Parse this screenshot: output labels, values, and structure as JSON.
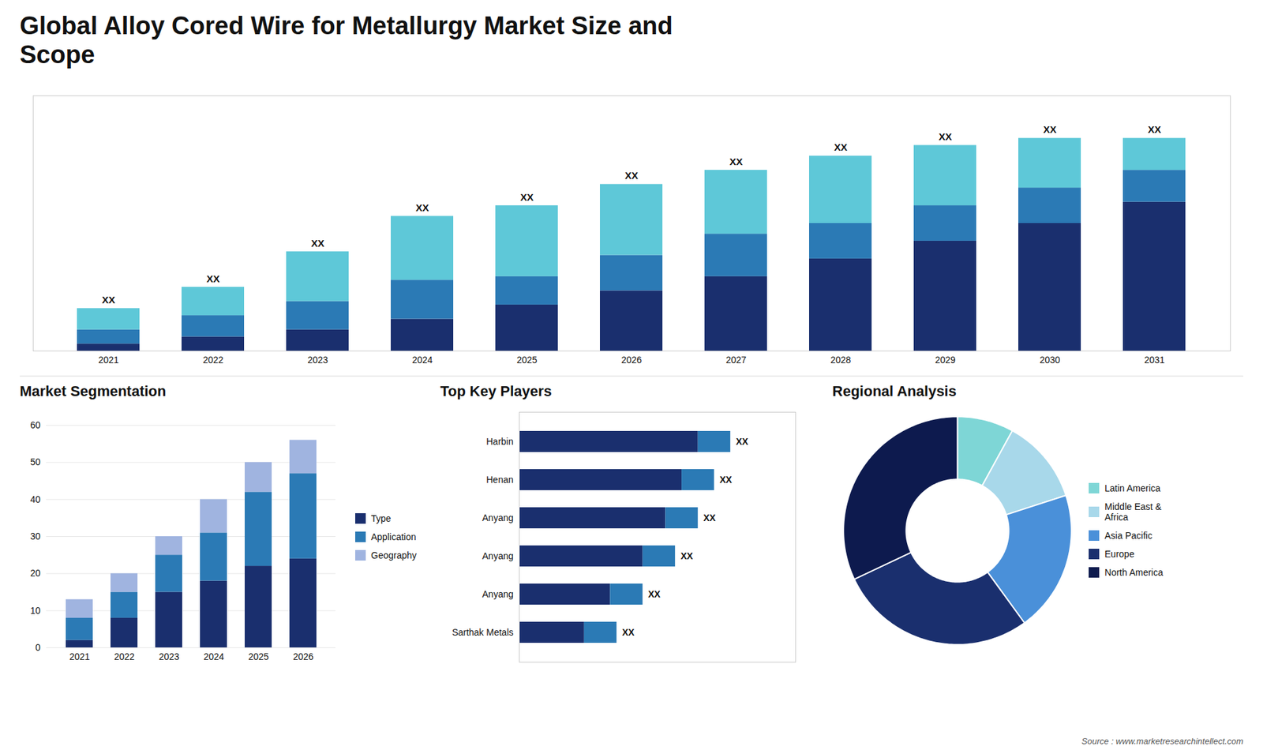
{
  "chart_data": [
    {
      "type": "bar",
      "title": "Global Alloy Cored Wire for Metallurgy Market Size and\nScope",
      "categories": [
        "2021",
        "2022",
        "2023",
        "2024",
        "2025",
        "2026",
        "2027",
        "2028",
        "2029",
        "2030",
        "2031"
      ],
      "stacked": true,
      "series": [
        {
          "color": "#1a2f6e",
          "values": [
            2,
            4,
            6,
            9,
            13,
            17,
            21,
            26,
            31,
            36,
            42
          ]
        },
        {
          "color": "#2b7ab5",
          "values": [
            4,
            6,
            8,
            11,
            8,
            10,
            12,
            10,
            10,
            10,
            9
          ]
        },
        {
          "color": "#5ec8d8",
          "values": [
            6,
            8,
            14,
            18,
            20,
            20,
            18,
            19,
            17,
            14,
            9
          ]
        }
      ],
      "ylim": [
        0,
        72
      ],
      "tick_labels": "x",
      "grid": false,
      "annotations": [
        {
          "category": "2021",
          "text": "XX"
        },
        {
          "category": "2022",
          "text": "XX"
        },
        {
          "category": "2023",
          "text": "XX"
        },
        {
          "category": "2024",
          "text": "XX"
        },
        {
          "category": "2025",
          "text": "XX"
        },
        {
          "category": "2026",
          "text": "XX"
        },
        {
          "category": "2027",
          "text": "XX"
        },
        {
          "category": "2028",
          "text": "XX"
        },
        {
          "category": "2029",
          "text": "XX"
        },
        {
          "category": "2030",
          "text": "XX"
        },
        {
          "category": "2031",
          "text": "XX"
        },
        {
          "text": "Source : www.marketresearchintellect.com"
        }
      ]
    },
    {
      "type": "bar",
      "title": "Market Segmentation",
      "categories": [
        "2021",
        "2022",
        "2023",
        "2024",
        "2025",
        "2026"
      ],
      "stacked": true,
      "series": [
        {
          "name": "Type",
          "color": "#1a2f6e",
          "values": [
            2,
            8,
            15,
            18,
            22,
            24
          ]
        },
        {
          "name": "Application",
          "color": "#2b7ab5",
          "values": [
            6,
            7,
            10,
            13,
            20,
            23
          ]
        },
        {
          "name": "Geography",
          "color": "#a0b4e0",
          "values": [
            5,
            5,
            5,
            9,
            8,
            9
          ]
        }
      ],
      "ylim": [
        0,
        60
      ],
      "yticks": [
        0,
        10,
        20,
        30,
        40,
        50,
        60
      ],
      "grid": true,
      "legend": "right"
    },
    {
      "type": "bar",
      "title": "Top Key Players",
      "orientation": "horizontal",
      "stacked": true,
      "categories": [
        "Harbin",
        "Henan",
        "Anyang",
        "Anyang",
        "Anyang",
        "Sarthak Metals"
      ],
      "series": [
        {
          "color": "#1a2f6e",
          "values": [
            55,
            50,
            45,
            38,
            28,
            20
          ]
        },
        {
          "color": "#2b7ab5",
          "values": [
            10,
            10,
            10,
            10,
            10,
            10
          ]
        }
      ],
      "xlim": [
        0,
        85
      ],
      "tick_labels": "y",
      "grid": false,
      "annotations": [
        {
          "category": "Harbin",
          "text": "XX"
        },
        {
          "category": "Henan",
          "text": "XX"
        },
        {
          "category": "Anyang",
          "text": "XX"
        },
        {
          "category": "Anyang",
          "text": "XX"
        },
        {
          "category": "Anyang",
          "text": "XX"
        },
        {
          "category": "Sarthak Metals",
          "text": "XX"
        }
      ]
    },
    {
      "type": "donut",
      "title": "Regional Analysis",
      "categories": [
        "Latin America",
        "Middle East &\nAfrica",
        "Asia Pacific",
        "Europe",
        "North America"
      ],
      "values": [
        8,
        12,
        20,
        28,
        32
      ],
      "colors": [
        "#7ed6d6",
        "#a8d8ea",
        "#4a90d9",
        "#1a2f6e",
        "#0d1a4e"
      ],
      "legend": "right"
    }
  ]
}
